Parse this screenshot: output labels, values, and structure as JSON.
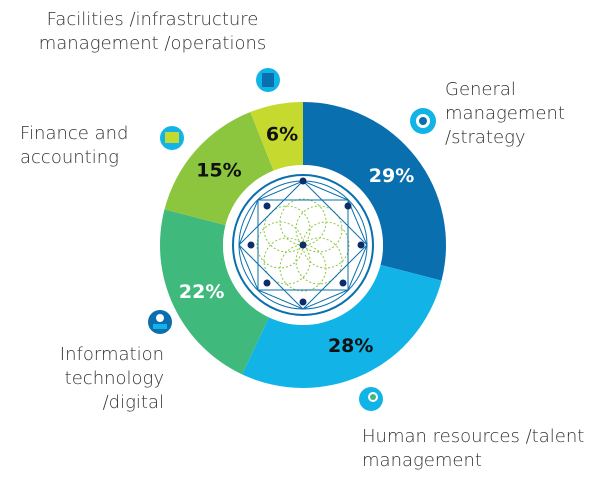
{
  "chart_data": {
    "type": "donut",
    "categories": [
      "General management /strategy",
      "Human resources /talent management",
      "Information technology /digital",
      "Finance and accounting",
      "Facilities /infrastructure management /operations"
    ],
    "values": [
      29,
      28,
      22,
      15,
      6
    ],
    "value_labels": [
      "29%",
      "28%",
      "22%",
      "15%",
      "6%"
    ],
    "colors": [
      "#0a6fae",
      "#12b4e8",
      "#3fb97c",
      "#8cc63f",
      "#c6d92e"
    ],
    "label_colors": [
      "#ffffff",
      "#111111",
      "#ffffff",
      "#111111",
      "#111111"
    ]
  }
}
